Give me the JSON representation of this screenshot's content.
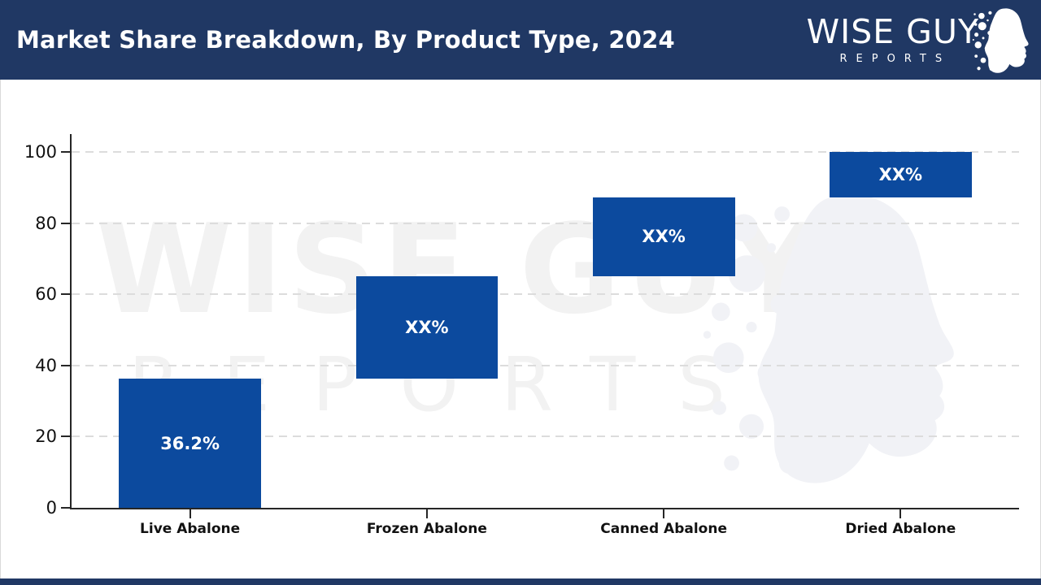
{
  "header": {
    "title": "Market Share Breakdown, By Product Type, 2024",
    "bg_color": "#203864",
    "logo": {
      "line1": "WISE GUY",
      "line2": "REPORTS",
      "head_icon": "wise-guy-dotted-head"
    }
  },
  "watermark": {
    "line1": "WISE GUY",
    "line2": "REPORTS"
  },
  "footer": {
    "bg_color": "#203864"
  },
  "chart_data": {
    "type": "bar",
    "subtype": "floating-waterfall",
    "title": "Market Share Breakdown, By Product Type, 2024",
    "categories": [
      "Live Abalone",
      "Frozen Abalone",
      "Canned Abalone",
      "Dried Abalone"
    ],
    "segments": [
      {
        "category": "Live Abalone",
        "start": 0,
        "end": 36.2,
        "label": "36.2%"
      },
      {
        "category": "Frozen Abalone",
        "start": 36.2,
        "end": 65.1,
        "label": "XX%"
      },
      {
        "category": "Canned Abalone",
        "start": 65.1,
        "end": 87.2,
        "label": "XX%"
      },
      {
        "category": "Dried Abalone",
        "start": 87.2,
        "end": 100,
        "label": "XX%"
      }
    ],
    "yticks": [
      0,
      20,
      40,
      60,
      80,
      100
    ],
    "ylim": [
      0,
      105
    ],
    "xlabel": "",
    "ylabel": "",
    "grid": true,
    "legend": "none",
    "bar_color": "#0c4a9e",
    "bar_label_color": "#ffffff",
    "grid_color": "#dcdcdc",
    "axis_color": "#262626"
  }
}
